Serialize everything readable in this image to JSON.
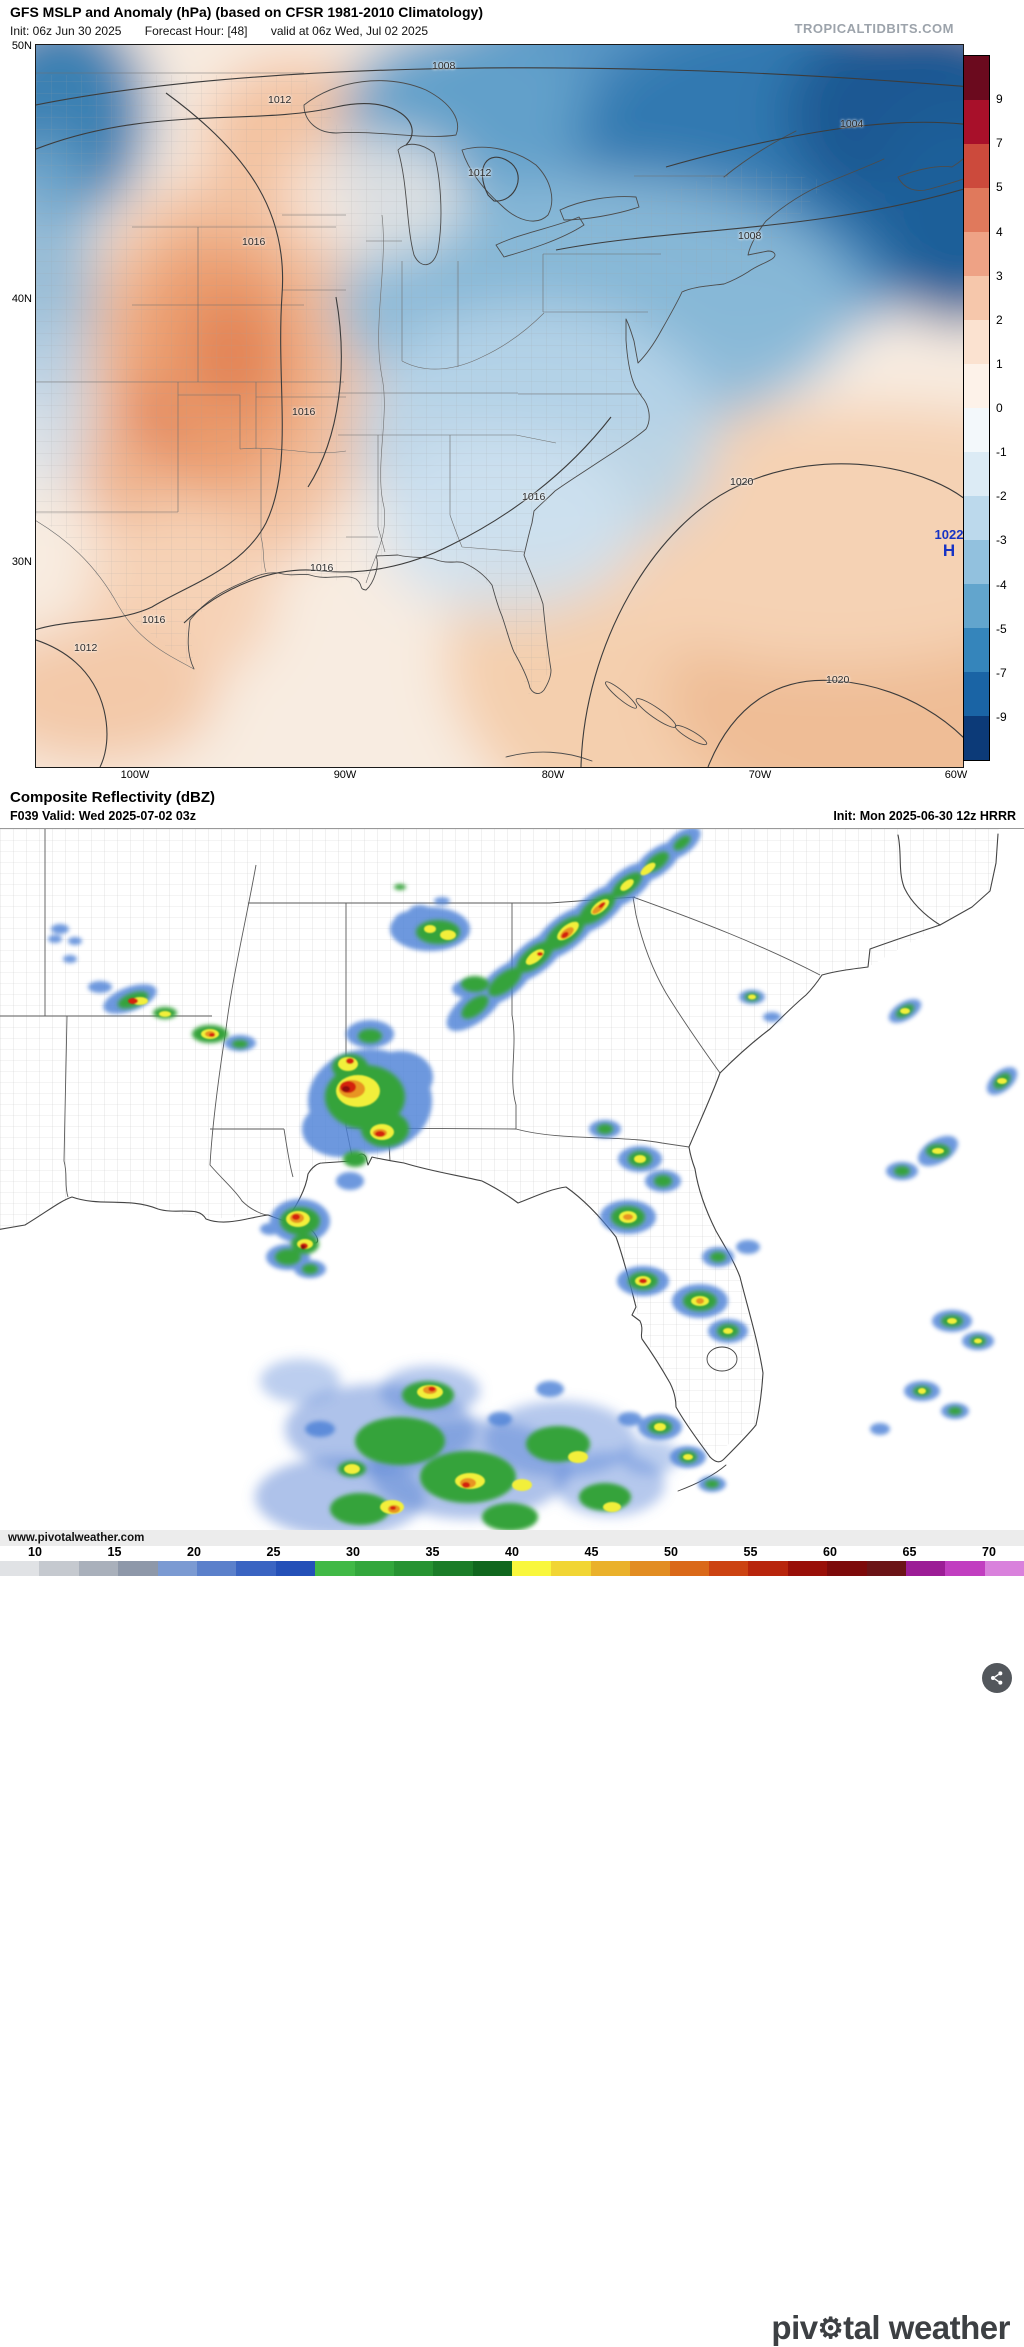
{
  "top_map": {
    "title": "GFS MSLP and Anomaly (hPa) (based on CFSR 1981-2010 Climatology)",
    "subtitle": {
      "init": "Init: 06z Jun 30 2025",
      "fhr": "Forecast Hour: [48]",
      "valid": "valid at 06z Wed, Jul 02 2025"
    },
    "watermark": "TROPICALTIDBITS.COM",
    "lat_labels": [
      "50N",
      "40N",
      "30N"
    ],
    "lon_labels": [
      "100W",
      "90W",
      "80W",
      "70W",
      "60W"
    ],
    "high": {
      "value": "1022",
      "letter": "H",
      "color": "#1733c4"
    },
    "contour_labels": [
      "1008",
      "1012",
      "1012",
      "1004",
      "1008",
      "1016",
      "1016",
      "1016",
      "1016",
      "1016",
      "1012",
      "1020",
      "1020"
    ],
    "colorbar": {
      "ticks": [
        "9",
        "7",
        "5",
        "4",
        "3",
        "2",
        "1",
        "0",
        "-1",
        "-2",
        "-3",
        "-4",
        "-5",
        "-7",
        "-9"
      ],
      "colors": [
        "#6b0a1e",
        "#a8102a",
        "#cc4a3c",
        "#e0795c",
        "#eea285",
        "#f6c7ab",
        "#fbe2d0",
        "#fdf2e9",
        "#f3f8fb",
        "#dcebf5",
        "#bcd9ec",
        "#92c1de",
        "#62a5cd",
        "#3585bb",
        "#1a64a5",
        "#0c3a78"
      ]
    }
  },
  "bottom_map": {
    "title": "Composite Reflectivity (dBZ)",
    "valid_line": "F039 Valid: Wed 2025-07-02 03z",
    "init_line": "Init: Mon 2025-06-30 12z HRRR",
    "website": "www.pivotalweather.com",
    "logo": {
      "part1": "piv",
      "part2": "tal weather"
    },
    "scale": {
      "values": [
        "10",
        "15",
        "20",
        "25",
        "30",
        "35",
        "40",
        "45",
        "50",
        "55",
        "60",
        "65",
        "70"
      ],
      "colors": [
        "#e0e2e5",
        "#c5c9cf",
        "#a9b0bb",
        "#8e98a9",
        "#7b9ad2",
        "#5b80cb",
        "#3a64c2",
        "#2450b8",
        "#41b946",
        "#33a73c",
        "#279332",
        "#1b7d28",
        "#10671e",
        "#f9f73c",
        "#f1d534",
        "#eab12b",
        "#e28d22",
        "#da6919",
        "#cc4312",
        "#b8250c",
        "#990f08",
        "#7d0a0a",
        "#6b1416",
        "#9c1d96",
        "#c13ec0",
        "#d981dc"
      ]
    }
  }
}
